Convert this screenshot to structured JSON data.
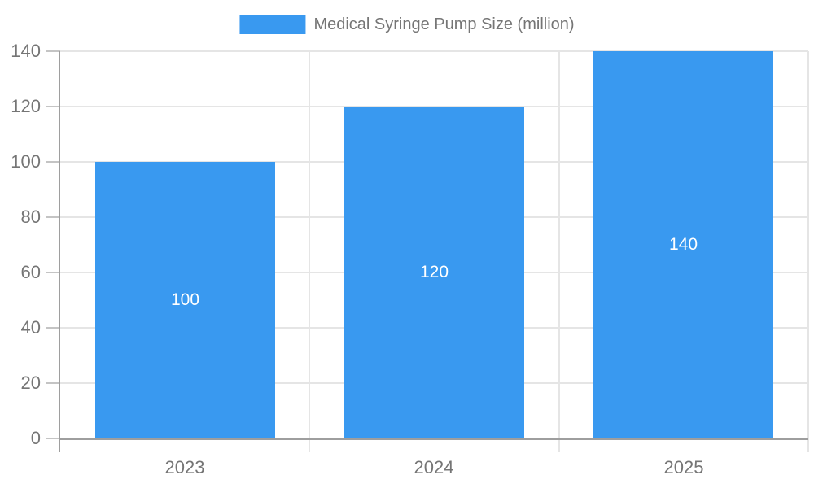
{
  "chart_data": {
    "type": "bar",
    "title": "Medical Syringe Pump Size (million)",
    "categories": [
      "2023",
      "2024",
      "2025"
    ],
    "series": [
      {
        "name": "Medical Syringe Pump Size (million)",
        "values": [
          100,
          120,
          140
        ]
      }
    ],
    "xlabel": "",
    "ylabel": "",
    "ylim": [
      0,
      140
    ],
    "yticks": [
      0,
      20,
      40,
      60,
      80,
      100,
      120,
      140
    ],
    "data_labels": [
      "100",
      "120",
      "140"
    ],
    "grid": true,
    "legend_position": "top"
  },
  "legend": {
    "label": "Medical Syringe Pump Size (million)"
  },
  "colors": {
    "bar": "#3999F0",
    "bar_label": "#FFFFFF",
    "gridline": "#E5E5E5",
    "tick": "#C4C4C4",
    "axis": "#9E9E9E",
    "text": "#757575",
    "background": "#FFFFFF"
  }
}
